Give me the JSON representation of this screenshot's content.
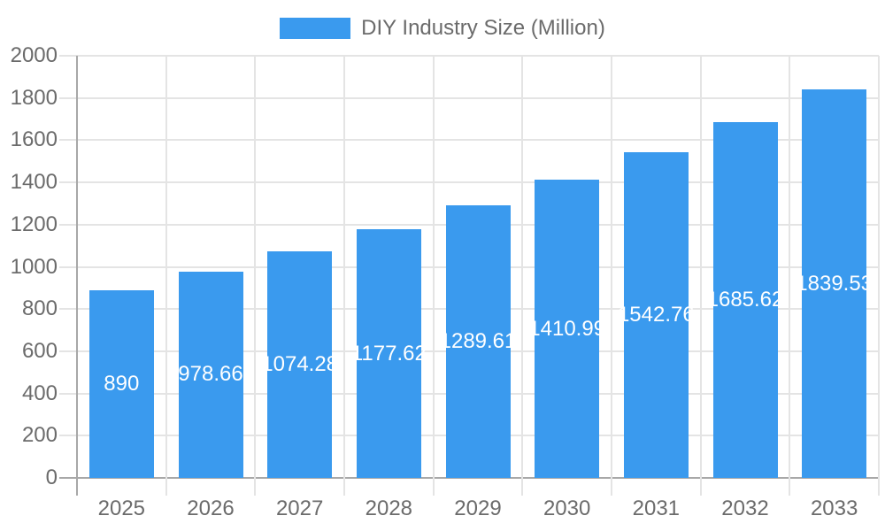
{
  "legend": {
    "label": "DIY Industry Size (Million)"
  },
  "chart_data": {
    "type": "bar",
    "title": "",
    "xlabel": "",
    "ylabel": "",
    "legend_position": "top",
    "grid": true,
    "categories": [
      "2025",
      "2026",
      "2027",
      "2028",
      "2029",
      "2030",
      "2031",
      "2032",
      "2033"
    ],
    "series": [
      {
        "name": "DIY Industry Size (Million)",
        "values": [
          890,
          978.66,
          1074.28,
          1177.62,
          1289.61,
          1410.99,
          1542.76,
          1685.62,
          1839.53
        ]
      }
    ],
    "bar_labels": [
      "890",
      "978.66",
      "1074.28",
      "1177.62",
      "1289.61",
      "1410.99",
      "1542.76",
      "1685.62",
      "1839.53"
    ],
    "ylim": [
      0,
      2000
    ],
    "yticks": [
      0,
      200,
      400,
      600,
      800,
      1000,
      1200,
      1400,
      1600,
      1800,
      2000
    ],
    "colors": {
      "bar": "#3A9AEE",
      "grid_light": "#E4E4E4",
      "axis_dark": "#A8A8A8",
      "tick_label": "#6B6B6B",
      "legend_label": "#6B6B6B",
      "data_label": "#FFFFFF"
    }
  }
}
